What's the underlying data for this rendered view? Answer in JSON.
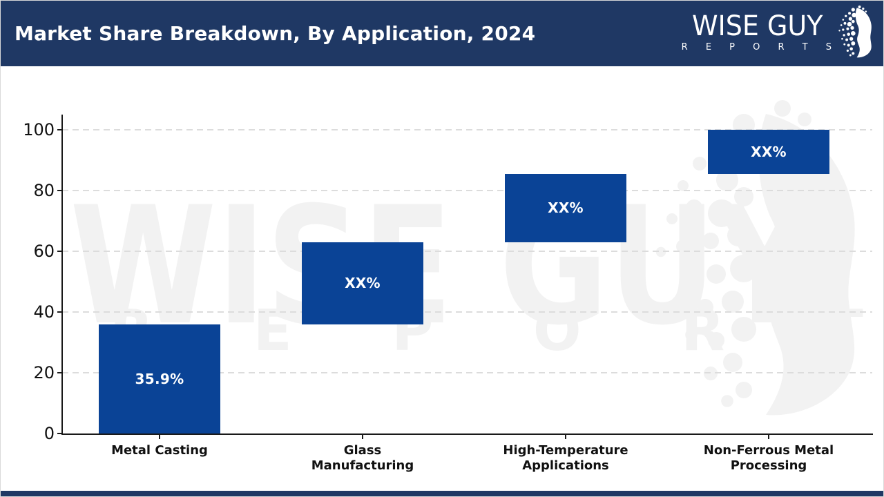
{
  "header": {
    "title": "Market Share Breakdown, By Application, 2024"
  },
  "logo": {
    "name_line": "WISE GUY",
    "sub_line": "R E P O R T S",
    "face_icon": "dotted-face-profile"
  },
  "watermark": {
    "name_line": "WISE GUY",
    "sub_line": "R E P O R T S"
  },
  "chart_data": {
    "type": "bar",
    "subtype": "floating-waterfall",
    "title": "Market Share Breakdown, By Application, 2024",
    "categories": [
      "Metal Casting",
      "Glass Manufacturing",
      "High-Temperature Applications",
      "Non-Ferrous Metal Processing"
    ],
    "category_label_lines": [
      [
        "Metal Casting"
      ],
      [
        "Glass",
        "Manufacturing"
      ],
      [
        "High-Temperature",
        "Applications"
      ],
      [
        "Non-Ferrous Metal",
        "Processing"
      ]
    ],
    "segments": [
      {
        "category": "Metal Casting",
        "start": 0,
        "end": 35.9,
        "label": "35.9%"
      },
      {
        "category": "Glass Manufacturing",
        "start": 35.9,
        "end": 63.0,
        "label": "XX%"
      },
      {
        "category": "High-Temperature Applications",
        "start": 63.0,
        "end": 85.5,
        "label": "XX%"
      },
      {
        "category": "Non-Ferrous Metal Processing",
        "start": 85.5,
        "end": 100.0,
        "label": "XX%"
      }
    ],
    "ylim": [
      0,
      100
    ],
    "yticks": [
      0,
      20,
      40,
      60,
      80,
      100
    ],
    "xlabel": "",
    "ylabel": "",
    "grid": "horizontal-dashed",
    "legend": "none",
    "bar_color": "#0a4396"
  },
  "colors": {
    "header_bg": "#1f3864",
    "footer_bg": "#1f3864",
    "bar": "#0a4396",
    "gridline": "#dcdcdc",
    "axis": "#1a1a1a",
    "watermark": "#f2f2f2",
    "title_text": "#ffffff",
    "bar_label_text": "#ffffff"
  }
}
